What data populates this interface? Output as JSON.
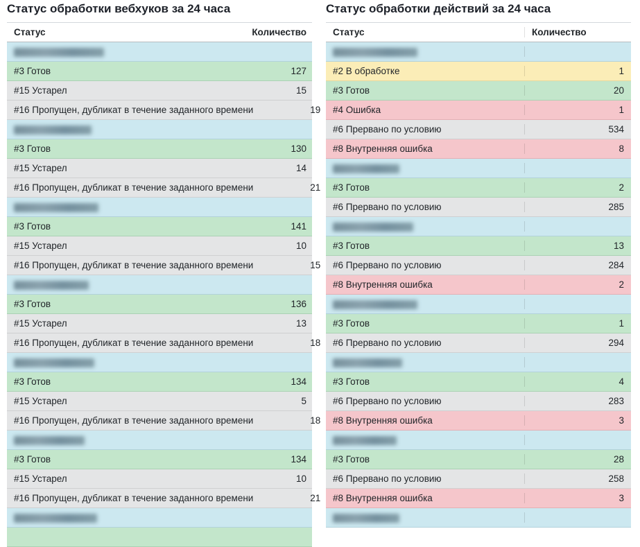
{
  "colors": {
    "group_header_bg": "#cce8f0",
    "success_bg": "#c3e6cb",
    "warning_bg": "#fbedb7",
    "danger_bg": "#f5c6cb",
    "neutral_bg": "#e4e5e6",
    "redacted_blob": "#7e96a1"
  },
  "left_table": {
    "title": "Статус обработки вебхуков за 24 часа",
    "columns": {
      "status": "Статус",
      "count": "Количество"
    },
    "groups": [
      {
        "redacted": true,
        "blur_width": 130,
        "rows": [
          {
            "label": "#3 Готов",
            "count": 127,
            "color": "success"
          },
          {
            "label": "#15 Устарел",
            "count": 15,
            "color": "secondary"
          },
          {
            "label": "#16 Пропущен, дубликат в течение заданного времени",
            "count": 19,
            "color": "secondary"
          }
        ]
      },
      {
        "redacted": true,
        "blur_width": 112,
        "rows": [
          {
            "label": "#3 Готов",
            "count": 130,
            "color": "success"
          },
          {
            "label": "#15 Устарел",
            "count": 14,
            "color": "secondary"
          },
          {
            "label": "#16 Пропущен, дубликат в течение заданного времени",
            "count": 21,
            "color": "secondary"
          }
        ]
      },
      {
        "redacted": true,
        "blur_width": 122,
        "rows": [
          {
            "label": "#3 Готов",
            "count": 141,
            "color": "success"
          },
          {
            "label": "#15 Устарел",
            "count": 10,
            "color": "secondary"
          },
          {
            "label": "#16 Пропущен, дубликат в течение заданного времени",
            "count": 15,
            "color": "secondary"
          }
        ]
      },
      {
        "redacted": true,
        "blur_width": 108,
        "rows": [
          {
            "label": "#3 Готов",
            "count": 136,
            "color": "success"
          },
          {
            "label": "#15 Устарел",
            "count": 13,
            "color": "secondary"
          },
          {
            "label": "#16 Пропущен, дубликат в течение заданного времени",
            "count": 18,
            "color": "secondary"
          }
        ]
      },
      {
        "redacted": true,
        "blur_width": 116,
        "rows": [
          {
            "label": "#3 Готов",
            "count": 134,
            "color": "success"
          },
          {
            "label": "#15 Устарел",
            "count": 5,
            "color": "secondary"
          },
          {
            "label": "#16 Пропущен, дубликат в течение заданного времени",
            "count": 18,
            "color": "secondary"
          }
        ]
      },
      {
        "redacted": true,
        "blur_width": 102,
        "rows": [
          {
            "label": "#3 Готов",
            "count": 134,
            "color": "success"
          },
          {
            "label": "#15 Устарел",
            "count": 10,
            "color": "secondary"
          },
          {
            "label": "#16 Пропущен, дубликат в течение заданного времени",
            "count": 21,
            "color": "secondary"
          }
        ]
      },
      {
        "redacted": true,
        "blur_width": 120,
        "rows": [
          {
            "label": "",
            "count": "",
            "color": "success"
          }
        ]
      }
    ]
  },
  "right_table": {
    "title": "Статус обработки действий за 24 часа",
    "columns": {
      "status": "Статус",
      "count": "Количество"
    },
    "groups": [
      {
        "redacted": true,
        "blur_width": 122,
        "rows": [
          {
            "label": "#2 В обработке",
            "count": 1,
            "color": "warning"
          },
          {
            "label": "#3 Готов",
            "count": 20,
            "color": "success"
          },
          {
            "label": "#4 Ошибка",
            "count": 1,
            "color": "danger"
          },
          {
            "label": "#6 Прервано по условию",
            "count": 534,
            "color": "secondary"
          },
          {
            "label": "#8 Внутренняя ошибка",
            "count": 8,
            "color": "danger"
          }
        ]
      },
      {
        "redacted": true,
        "blur_width": 96,
        "rows": [
          {
            "label": "#3 Готов",
            "count": 2,
            "color": "success"
          },
          {
            "label": "#6 Прервано по условию",
            "count": 285,
            "color": "secondary"
          }
        ]
      },
      {
        "redacted": true,
        "blur_width": 116,
        "rows": [
          {
            "label": "#3 Готов",
            "count": 13,
            "color": "success"
          },
          {
            "label": "#6 Прервано по условию",
            "count": 284,
            "color": "secondary"
          },
          {
            "label": "#8 Внутренняя ошибка",
            "count": 2,
            "color": "danger"
          }
        ]
      },
      {
        "redacted": true,
        "blur_width": 122,
        "rows": [
          {
            "label": "#3 Готов",
            "count": 1,
            "color": "success"
          },
          {
            "label": "#6 Прервано по условию",
            "count": 294,
            "color": "secondary"
          }
        ]
      },
      {
        "redacted": true,
        "blur_width": 100,
        "rows": [
          {
            "label": "#3 Готов",
            "count": 4,
            "color": "success"
          },
          {
            "label": "#6 Прервано по условию",
            "count": 283,
            "color": "secondary"
          },
          {
            "label": "#8 Внутренняя ошибка",
            "count": 3,
            "color": "danger"
          }
        ]
      },
      {
        "redacted": true,
        "blur_width": 92,
        "rows": [
          {
            "label": "#3 Готов",
            "count": 28,
            "color": "success"
          },
          {
            "label": "#6 Прервано по условию",
            "count": 258,
            "color": "secondary"
          },
          {
            "label": "#8 Внутренняя ошибка",
            "count": 3,
            "color": "danger"
          }
        ]
      },
      {
        "redacted": true,
        "blur_width": 96,
        "rows": []
      }
    ]
  }
}
